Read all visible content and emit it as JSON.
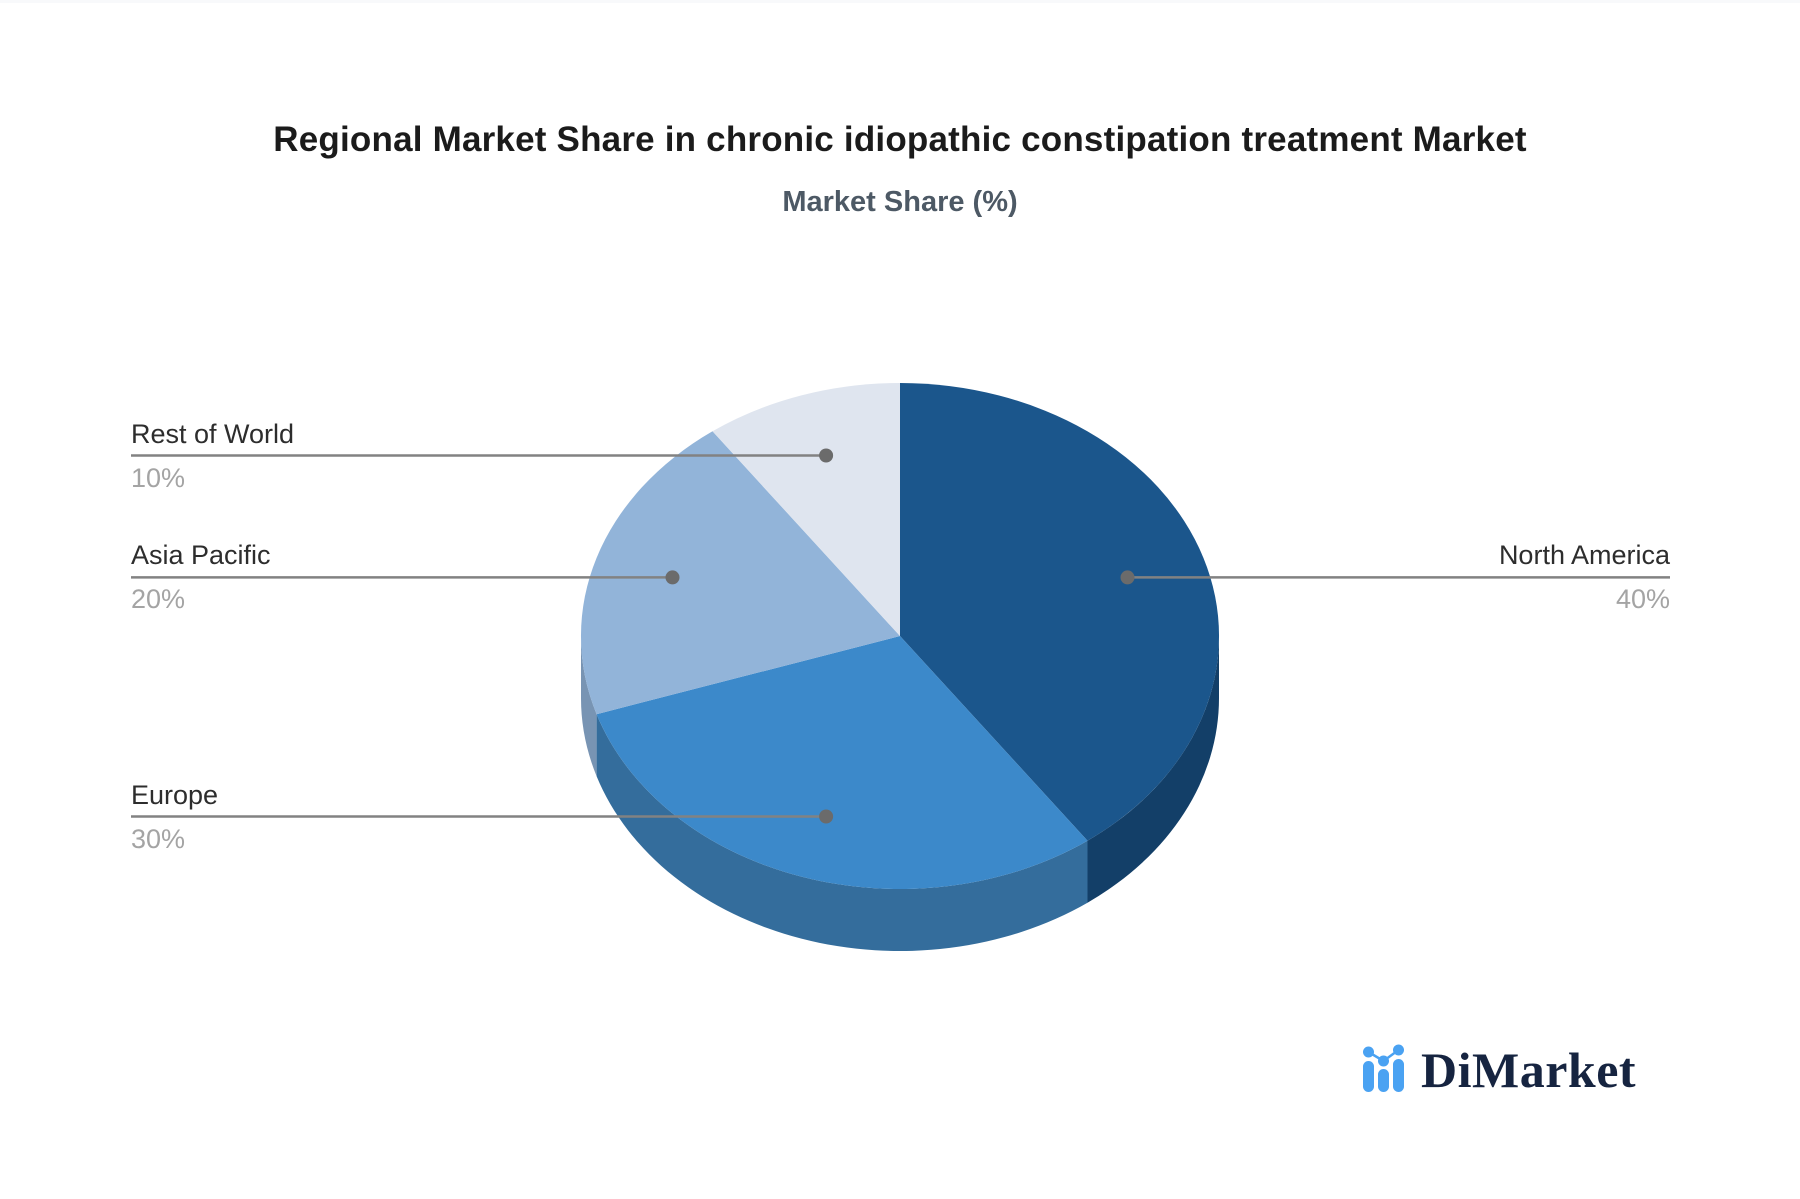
{
  "title": "Regional Market Share in chronic idiopathic constipation treatment Market",
  "subtitle": "Market Share (%)",
  "chart_data": {
    "type": "pie",
    "style": "3d",
    "title": "Regional Market Share in chronic idiopathic constipation treatment Market",
    "subtitle": "Market Share (%)",
    "categories": [
      "North America",
      "Europe",
      "Asia Pacific",
      "Rest of World"
    ],
    "values": [
      40,
      30,
      20,
      10
    ],
    "unit": "%",
    "start_angle": 0,
    "direction": "clockwise",
    "colors": [
      "#1b568c",
      "#3c89ca",
      "#92b4d9",
      "#dfe5ef"
    ],
    "depth_colors": [
      "#133f68",
      "#346d9c",
      "#7894b3",
      "#c5ced9"
    ],
    "leader_line_color": "#828282",
    "leader_dot_color": "#6b6b6b",
    "label_color": "#2d2d2d",
    "value_color": "#a4a4a4",
    "legend_position": "leader-lines"
  },
  "callouts": [
    {
      "name": "North America",
      "value": "40%",
      "side": "right",
      "slice": 0
    },
    {
      "name": "Europe",
      "value": "30%",
      "side": "left",
      "slice": 1
    },
    {
      "name": "Asia Pacific",
      "value": "20%",
      "side": "left",
      "slice": 2
    },
    {
      "name": "Rest of World",
      "value": "10%",
      "side": "left",
      "slice": 3
    }
  ],
  "logo": {
    "text": "DiMarket",
    "icon_color": "#4aa2f2",
    "text_color": "#162440"
  }
}
